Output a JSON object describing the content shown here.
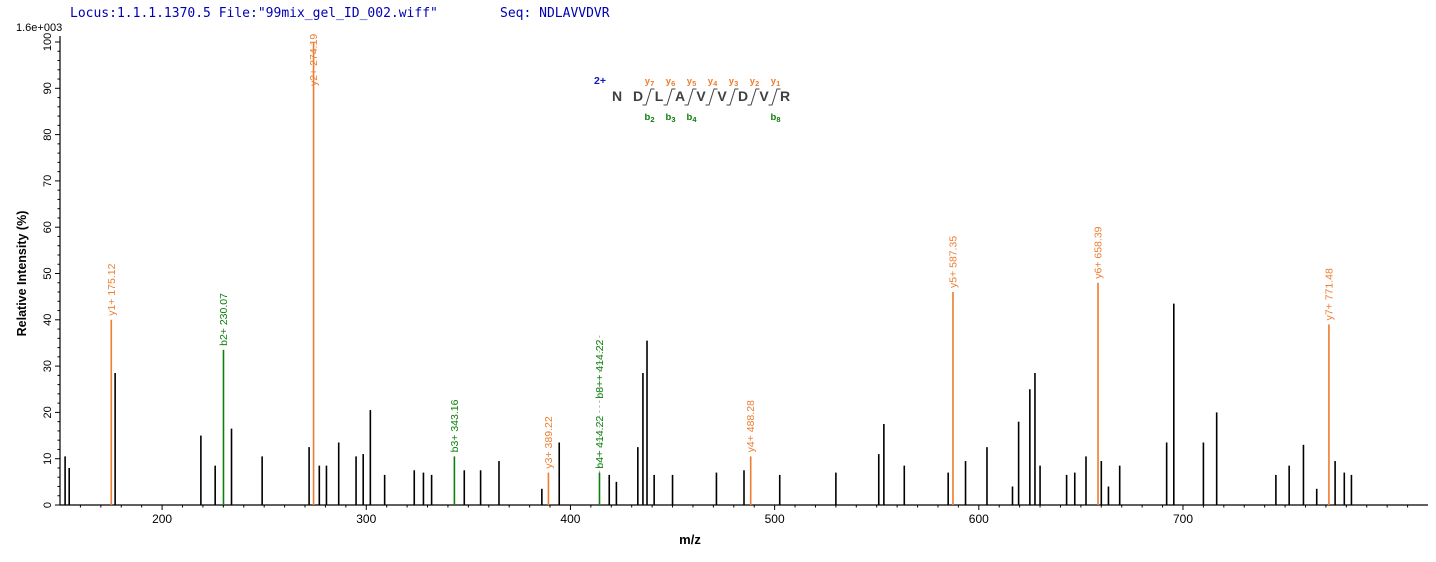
{
  "header": {
    "locus_file": "Locus:1.1.1.1370.5 File:\"99mix_gel_ID_002.wiff\"",
    "seq": "Seq: NDLAVVDVR"
  },
  "colors": {
    "header_text": "#0000b4",
    "y_ion": "#ed7d31",
    "b_ion": "#0b800b",
    "peak": "#000000",
    "axis": "#000000",
    "residue": "#404040",
    "charge": "#1414c8",
    "cleavage_mark": "#444444"
  },
  "peptide": {
    "charge_label": "2+",
    "residues": [
      "N",
      "D",
      "L",
      "A",
      "V",
      "V",
      "D",
      "V",
      "R"
    ],
    "y_ion_marks": [
      {
        "label": "y7",
        "gap": 2
      },
      {
        "label": "y6",
        "gap": 3
      },
      {
        "label": "y5",
        "gap": 4
      },
      {
        "label": "y4",
        "gap": 5
      },
      {
        "label": "y3",
        "gap": 6
      },
      {
        "label": "y2",
        "gap": 7
      },
      {
        "label": "y1",
        "gap": 8
      }
    ],
    "b_ion_marks": [
      {
        "label": "b2",
        "gap": 2
      },
      {
        "label": "b3",
        "gap": 3
      },
      {
        "label": "b4",
        "gap": 4
      },
      {
        "label": "b8",
        "gap": 8
      }
    ]
  },
  "chart_data": {
    "type": "bar",
    "subtype": "ms2-fragmentation-spectrum",
    "title": "",
    "xlabel": "m/z",
    "ylabel": "Relative  Intensity  (%)",
    "intensity_scale_label": "1.6e+003",
    "xlim": [
      150,
      820
    ],
    "ylim": [
      0,
      100
    ],
    "x_ticks": [
      200,
      300,
      400,
      500,
      600,
      700
    ],
    "y_ticks": [
      0,
      10,
      20,
      30,
      40,
      50,
      60,
      70,
      80,
      90,
      100
    ],
    "grid": false,
    "legend": false,
    "annotated_peaks": [
      {
        "mz": 175.12,
        "intensity": 40,
        "ion": "y",
        "labels": [
          "y1+ 175.12"
        ]
      },
      {
        "mz": 230.07,
        "intensity": 33.5,
        "ion": "b",
        "labels": [
          "b2+ 230.07"
        ]
      },
      {
        "mz": 274.19,
        "intensity": 100,
        "ion": "y",
        "labels": [
          "y2+ 274.19"
        ]
      },
      {
        "mz": 343.16,
        "intensity": 10.5,
        "ion": "b",
        "labels": [
          "b3+ 343.16"
        ]
      },
      {
        "mz": 389.22,
        "intensity": 7,
        "ion": "y",
        "labels": [
          "y3+ 389.22"
        ]
      },
      {
        "mz": 414.22,
        "intensity": 7,
        "ion": "b",
        "labels": [
          "b4+ 414.22",
          "b8++ 414.22"
        ],
        "leader": true
      },
      {
        "mz": 488.28,
        "intensity": 10.5,
        "ion": "y",
        "labels": [
          "y4+ 488.28"
        ]
      },
      {
        "mz": 587.35,
        "intensity": 46,
        "ion": "y",
        "labels": [
          "y5+ 587.35"
        ]
      },
      {
        "mz": 658.39,
        "intensity": 48,
        "ion": "y",
        "labels": [
          "y6+ 658.39"
        ]
      },
      {
        "mz": 771.48,
        "intensity": 39,
        "ion": "y",
        "labels": [
          "y7+ 771.48"
        ]
      }
    ],
    "unlabeled_peaks": [
      [
        152.5,
        10.5
      ],
      [
        154.5,
        8
      ],
      [
        177,
        28.5
      ],
      [
        219,
        15
      ],
      [
        226,
        8.5
      ],
      [
        234,
        16.5
      ],
      [
        249,
        10.5
      ],
      [
        272,
        12.5
      ],
      [
        277,
        8.5
      ],
      [
        280.5,
        8.5
      ],
      [
        286.5,
        13.5
      ],
      [
        295,
        10.5
      ],
      [
        298.5,
        11
      ],
      [
        302,
        20.5
      ],
      [
        309,
        6.5
      ],
      [
        323.5,
        7.5
      ],
      [
        328,
        7
      ],
      [
        332,
        6.5
      ],
      [
        348,
        7.5
      ],
      [
        356,
        7.5
      ],
      [
        365,
        9.5
      ],
      [
        386,
        3.5
      ],
      [
        394.5,
        13.5
      ],
      [
        419,
        6.5
      ],
      [
        422.5,
        5
      ],
      [
        433,
        12.5
      ],
      [
        435.5,
        28.5
      ],
      [
        437.5,
        35.5
      ],
      [
        441,
        6.5
      ],
      [
        450,
        6.5
      ],
      [
        471.5,
        7
      ],
      [
        485,
        7.5
      ],
      [
        502.5,
        6.5
      ],
      [
        530,
        7
      ],
      [
        551,
        11
      ],
      [
        553.5,
        17.5
      ],
      [
        563.5,
        8.5
      ],
      [
        585,
        7
      ],
      [
        593.5,
        9.5
      ],
      [
        604,
        12.5
      ],
      [
        616.5,
        4
      ],
      [
        619.5,
        18
      ],
      [
        625,
        25
      ],
      [
        627.5,
        28.5
      ],
      [
        630,
        8.5
      ],
      [
        643,
        6.5
      ],
      [
        647,
        7
      ],
      [
        652.5,
        10.5
      ],
      [
        660,
        9.5
      ],
      [
        663.5,
        4
      ],
      [
        669,
        8.5
      ],
      [
        692,
        13.5
      ],
      [
        695.5,
        43.5
      ],
      [
        710,
        13.5
      ],
      [
        716.5,
        20
      ],
      [
        745.5,
        6.5
      ],
      [
        752,
        8.5
      ],
      [
        759,
        13
      ],
      [
        765.5,
        3.5
      ],
      [
        774.5,
        9.5
      ],
      [
        779,
        7
      ],
      [
        782.5,
        6.5
      ]
    ]
  }
}
